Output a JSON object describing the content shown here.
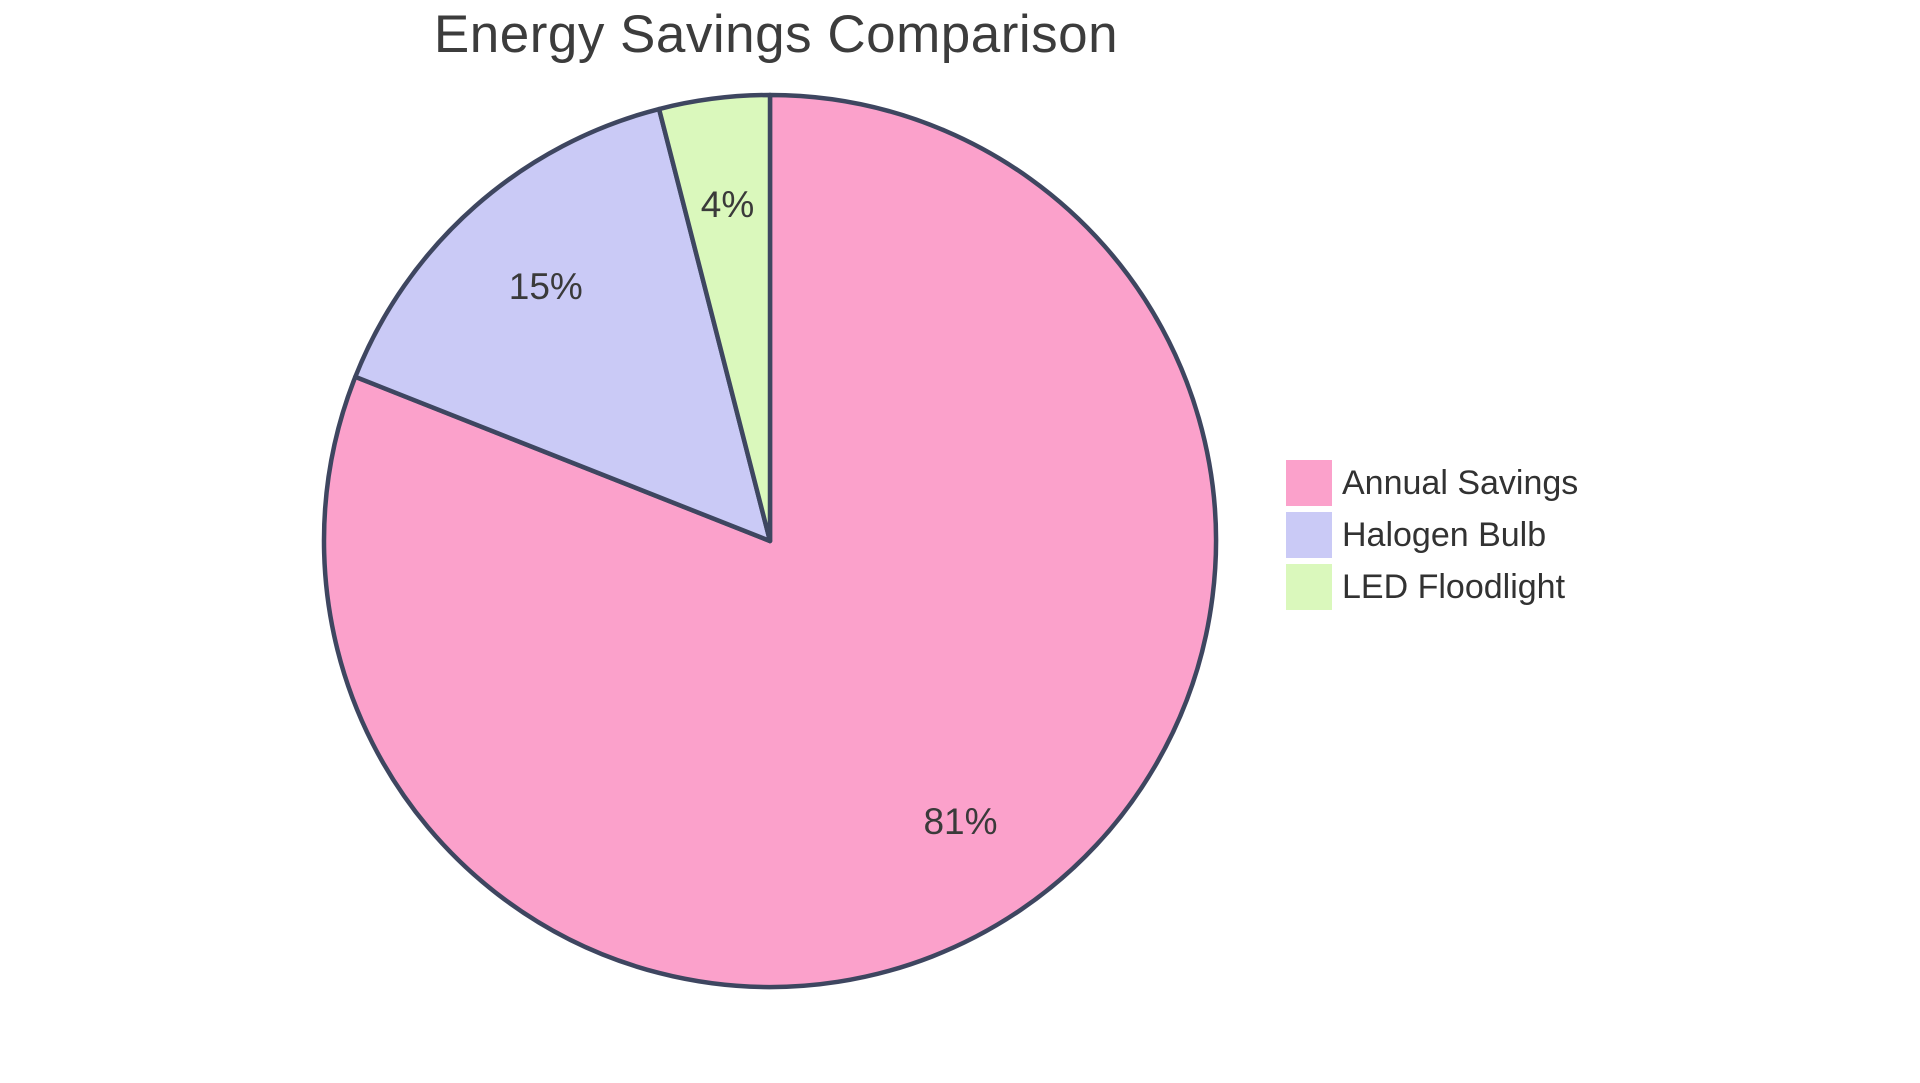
{
  "chart_data": {
    "type": "pie",
    "title": "Energy Savings Comparison",
    "slices": [
      {
        "label": "Annual Savings",
        "value": 81,
        "display": "81%",
        "color": "#FBA1CB"
      },
      {
        "label": "Halogen Bulb",
        "value": 15,
        "display": "15%",
        "color": "#CACAF6"
      },
      {
        "label": "LED Floodlight",
        "value": 4,
        "display": "4%",
        "color": "#DAF8BC"
      }
    ],
    "start_angle_deg": 0,
    "direction": "clockwise",
    "slice_stroke_color": "#3E4660",
    "slice_stroke_width": 4.5,
    "label_radius_fraction": 0.76,
    "label_color": "#3A3A3A",
    "title_color": "#3C3C3C",
    "legend_position": "right",
    "legend_text_color": "#323232",
    "background_color": "#FFFFFF"
  }
}
